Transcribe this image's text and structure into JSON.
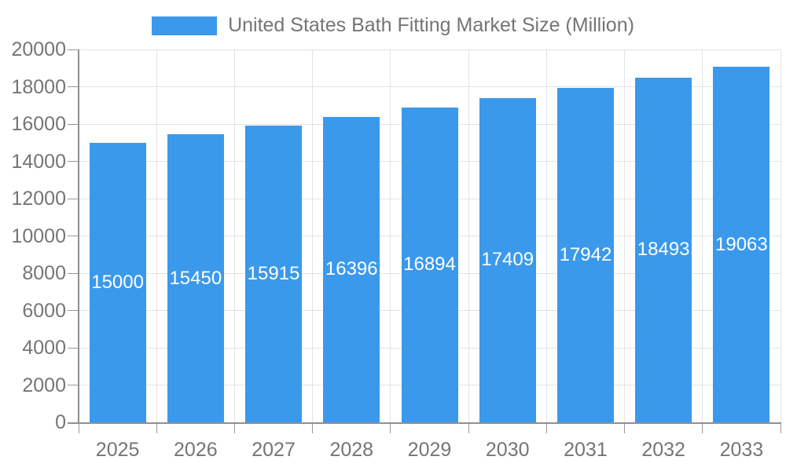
{
  "chart_data": {
    "type": "bar",
    "title": "United States Bath Fitting Market Size (Million)",
    "legend_entries": [
      "United States Bath Fitting Market Size (Million)"
    ],
    "legend_position": "top",
    "categories": [
      "2025",
      "2026",
      "2027",
      "2028",
      "2029",
      "2030",
      "2031",
      "2032",
      "2033"
    ],
    "values": [
      15000,
      15450,
      15915,
      16396,
      16894,
      17409,
      17942,
      18493,
      19063
    ],
    "xlabel": "",
    "ylabel": "",
    "ylim": [
      0,
      20000
    ],
    "ytick_step": 2000,
    "grid": true,
    "value_label_position": "inside-center",
    "colors": {
      "bar": "#3B99EC",
      "axis_line": "#909090",
      "gridline": "#E3E3E3",
      "tick": "#999999",
      "label_text": "#757575",
      "value_label_text": "#FFFFFF",
      "background": "#FFFFFF"
    }
  }
}
